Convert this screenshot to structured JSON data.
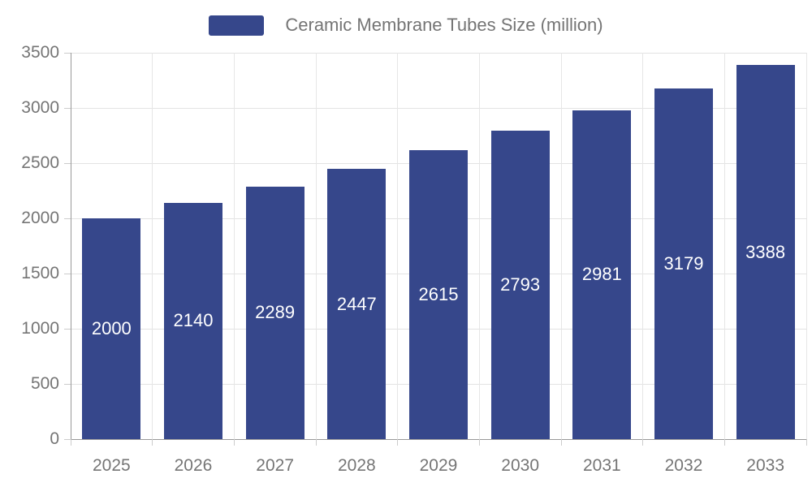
{
  "legend": {
    "label": "Ceramic Membrane Tubes Size (million)"
  },
  "chart_data": {
    "type": "bar",
    "title": "Ceramic Membrane Tubes Size (million)",
    "categories": [
      "2025",
      "2026",
      "2027",
      "2028",
      "2029",
      "2030",
      "2031",
      "2032",
      "2033"
    ],
    "values": [
      2000,
      2140,
      2289,
      2447,
      2615,
      2793,
      2981,
      3179,
      3388
    ],
    "xlabel": "",
    "ylabel": "",
    "ylim": [
      0,
      3500
    ],
    "ytick_step": 500,
    "ytick_labels": [
      "0",
      "500",
      "1000",
      "1500",
      "2000",
      "2500",
      "3000",
      "3500"
    ],
    "grid": true,
    "legend_position": "top",
    "bar_label_position": "inside-center",
    "colors": {
      "bar": "#36478B",
      "bar_label": "#ffffff",
      "axis_line": "#999999",
      "gridline": "#e3e3e3",
      "tick": "#cccccc",
      "axis_text": "#757575",
      "legend_text": "#757575",
      "background": "#ffffff"
    }
  }
}
